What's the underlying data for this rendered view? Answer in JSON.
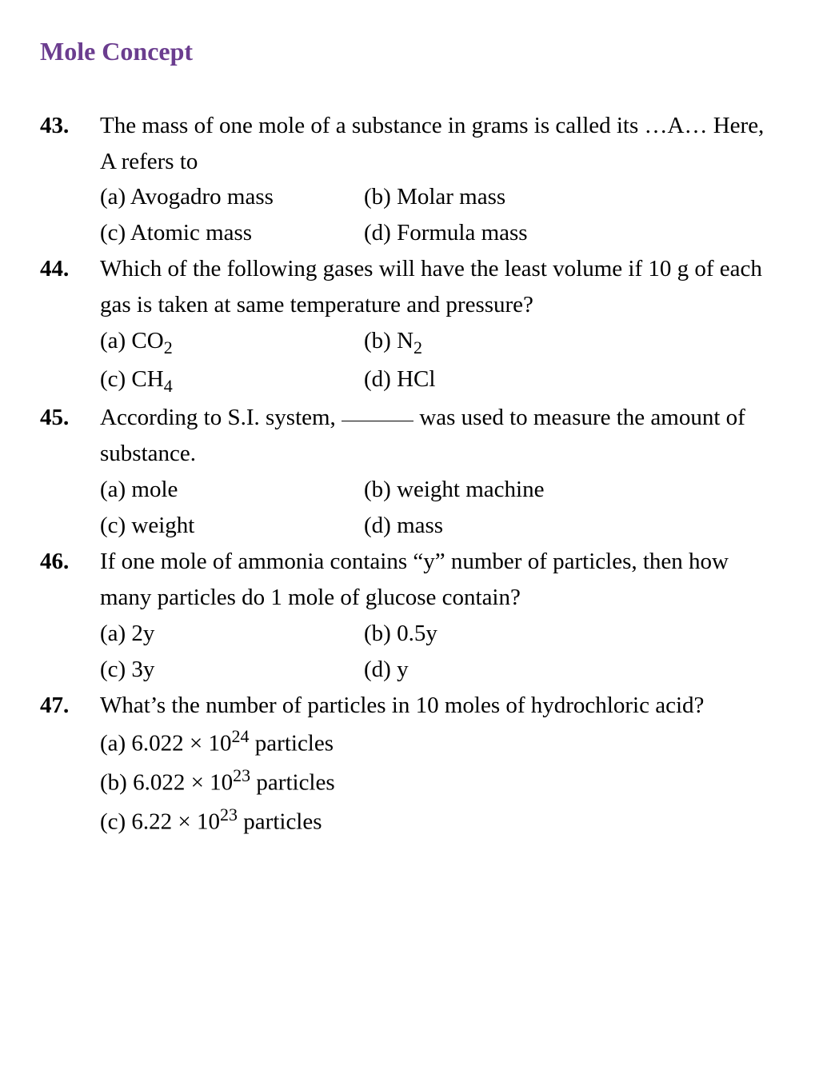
{
  "colors": {
    "title_color": "#6b3d8f",
    "text_color": "#000000",
    "background_color": "#ffffff"
  },
  "typography": {
    "body_fontsize": 29,
    "title_fontsize": 32,
    "font_family": "Times New Roman"
  },
  "section_title": "Mole Concept",
  "questions": [
    {
      "number": "43.",
      "text": "The mass of one mole of a substance in grams is called its …A… Here, A refers to",
      "options": {
        "a": "(a) Avogadro mass",
        "b": "(b) Molar mass",
        "c": "(c) Atomic mass",
        "d": "(d) Formula mass"
      }
    },
    {
      "number": "44.",
      "text": "Which of the following gases will have the least volume if 10 g of each gas is taken at same temperature and pressure?",
      "options": {
        "a_pre": "(a) CO",
        "a_sub": "2",
        "b_pre": "(b) N",
        "b_sub": "2",
        "c_pre": "(c) CH",
        "c_sub": "4",
        "d": "(d) HCl"
      }
    },
    {
      "number": "45.",
      "text_pre": "According to S.I. system, ",
      "text_post": " was used to measure the amount of substance.",
      "options": {
        "a": "(a) mole",
        "b": "(b) weight machine",
        "c": "(c) weight",
        "d": "(d) mass"
      }
    },
    {
      "number": "46.",
      "text": "If one mole of ammonia contains “y” number of particles, then how many particles do 1 mole of glucose contain?",
      "options": {
        "a": "(a) 2y",
        "b": "(b) 0.5y",
        "c": "(c) 3y",
        "d": "(d) y"
      }
    },
    {
      "number": "47.",
      "text": "What’s the number of particles in 10 moles of hydrochloric acid?",
      "options": {
        "a_pre": "(a) 6.022 × 10",
        "a_sup": "24",
        "a_post": " particles",
        "b_pre": "(b) 6.022 × 10",
        "b_sup": "23",
        "b_post": " particles",
        "c_pre": "(c) 6.22 × 10",
        "c_sup": "23",
        "c_post": " particles"
      }
    }
  ]
}
